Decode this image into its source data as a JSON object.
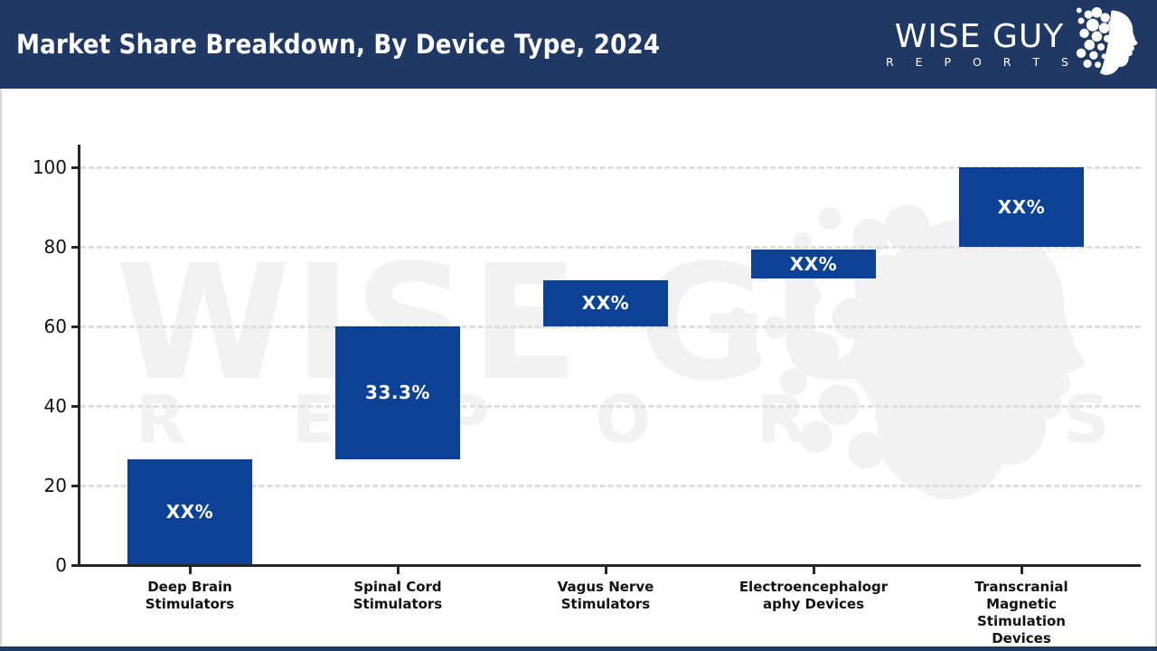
{
  "header": {
    "title": "Market Share Breakdown, By Device Type, 2024",
    "logo": {
      "line1": "WISE GUY",
      "line2": "R E P O R T S"
    }
  },
  "watermark": {
    "line1": "WISE GUY",
    "line2": "R E P O R T S"
  },
  "colors": {
    "header_bg": "#1f3864",
    "bar_fill": "#0b4296",
    "bar_label_text": "#ffffff",
    "grid_color": "#dedede",
    "axis_color": "#262626",
    "watermark_color": "#f2f2f2",
    "bottom_bar": "#1f3864"
  },
  "chart_data": {
    "type": "bar",
    "subtype": "waterfall",
    "title": "Market Share Breakdown, By Device Type, 2024",
    "xlabel": "",
    "ylabel": "",
    "ylim": [
      0,
      105
    ],
    "yticks": [
      0,
      20,
      40,
      60,
      80,
      100
    ],
    "grid": "horizontal-dashed",
    "legend": "none",
    "categories": [
      "Deep Brain\nStimulators",
      "Spinal Cord\nStimulators",
      "Vagus Nerve\nStimulators",
      "Electroencephalogr\naphy Devices",
      "Transcranial\nMagnetic\nStimulation\nDevices"
    ],
    "bars": [
      {
        "category": "Deep Brain Stimulators",
        "start": 0,
        "end": 26.7,
        "label": "XX%"
      },
      {
        "category": "Spinal Cord Stimulators",
        "start": 26.7,
        "end": 60.0,
        "label": "33.3%"
      },
      {
        "category": "Vagus Nerve Stimulators",
        "start": 60.0,
        "end": 71.6,
        "label": "XX%"
      },
      {
        "category": "Electroencephalography Devices",
        "start": 72.0,
        "end": 79.4,
        "label": "XX%"
      },
      {
        "category": "Transcranial Magnetic Stimulation Devices",
        "start": 80.0,
        "end": 100.0,
        "label": "XX%"
      }
    ]
  }
}
